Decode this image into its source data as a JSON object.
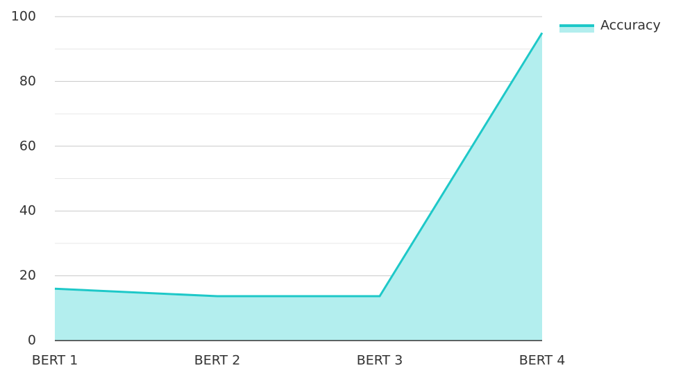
{
  "chart_data": {
    "type": "area",
    "categories": [
      "BERT 1",
      "BERT 2",
      "BERT 3",
      "BERT 4"
    ],
    "series": [
      {
        "name": "Accuracy",
        "color": "#1ec8c8",
        "fill": "#b3eeee",
        "values": [
          16,
          13.7,
          13.7,
          95
        ]
      }
    ],
    "ylim": [
      0,
      100
    ],
    "yticks": [
      0,
      20,
      40,
      60,
      80,
      100
    ],
    "minor_yticks": [
      10,
      30,
      50,
      70,
      90
    ],
    "grid": true,
    "legend": "top-right"
  }
}
